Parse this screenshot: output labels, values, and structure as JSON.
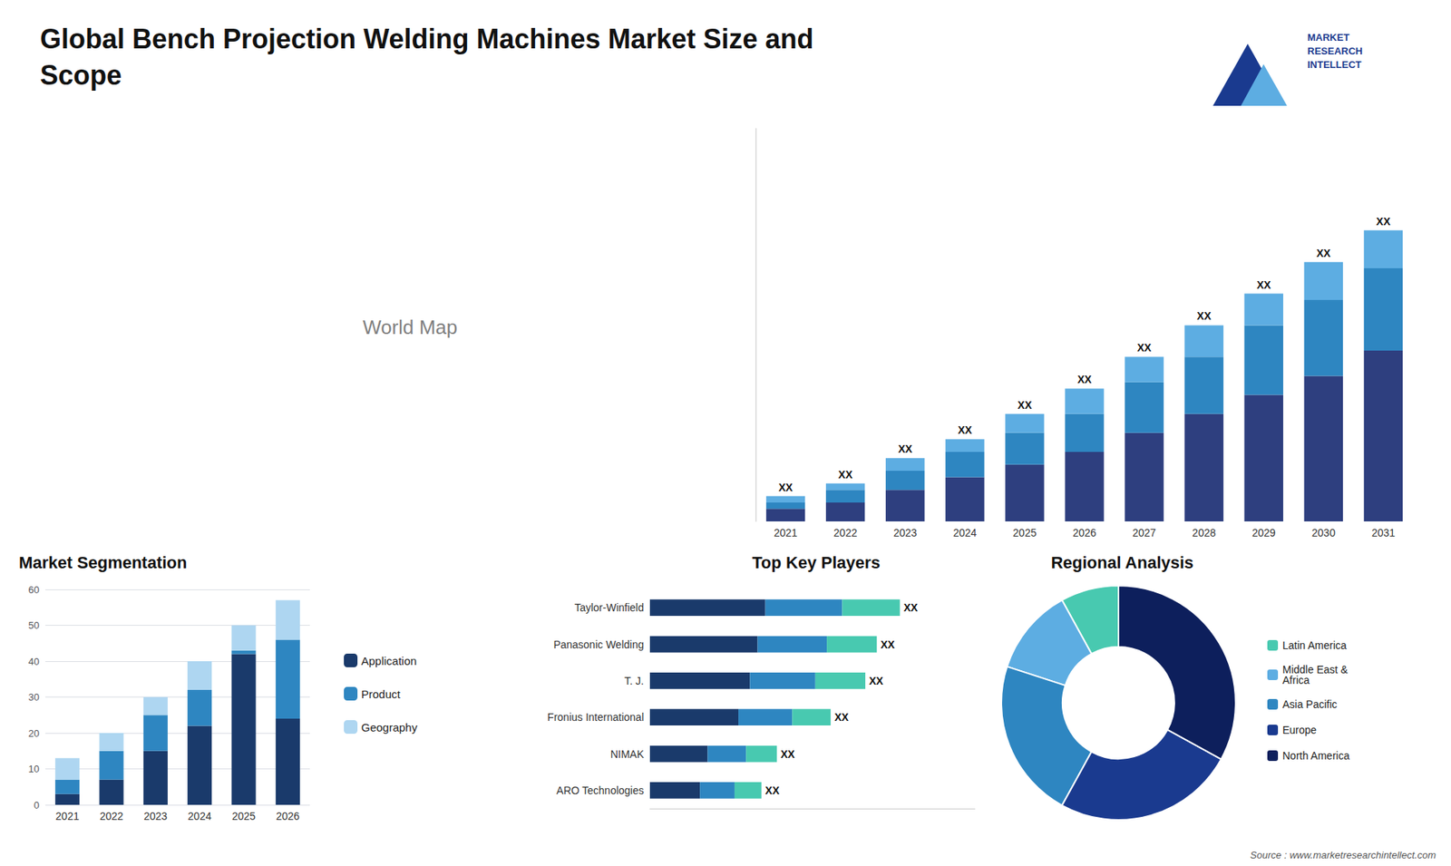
{
  "title": "Global Bench Projection Welding Machines Market Size and\nScope",
  "annotations": [
    {
      "text": "World Map"
    },
    {
      "text": "MARKET\nRESEARCH\nINTELLECT"
    },
    {
      "text": "Source : www.marketresearchintellect.com"
    }
  ],
  "chart_data": [
    {
      "type": "bar",
      "stacked": true,
      "categories": [
        "2021",
        "2022",
        "2023",
        "2024",
        "2025",
        "2026",
        "2027",
        "2028",
        "2029",
        "2030",
        "2031"
      ],
      "series": [
        {
          "color": "#2e3f7f",
          "values": [
            2,
            3,
            5,
            7,
            9,
            11,
            14,
            17,
            20,
            23,
            27
          ]
        },
        {
          "color": "#2e86c1",
          "values": [
            1,
            2,
            3,
            4,
            5,
            6,
            8,
            9,
            11,
            12,
            13
          ]
        },
        {
          "color": "#5dade2",
          "values": [
            1,
            1,
            2,
            2,
            3,
            4,
            4,
            5,
            5,
            6,
            6
          ]
        }
      ],
      "ylim": [
        0,
        62.1
      ],
      "tick_labels": "x",
      "grid": false,
      "annotations": [
        {
          "x": "2021",
          "text": "XX"
        },
        {
          "x": "2022",
          "text": "XX"
        },
        {
          "x": "2023",
          "text": "XX"
        },
        {
          "x": "2024",
          "text": "XX"
        },
        {
          "x": "2025",
          "text": "XX"
        },
        {
          "x": "2026",
          "text": "XX"
        },
        {
          "x": "2027",
          "text": "XX"
        },
        {
          "x": "2028",
          "text": "XX"
        },
        {
          "x": "2029",
          "text": "XX"
        },
        {
          "x": "2030",
          "text": "XX"
        },
        {
          "x": "2031",
          "text": "XX"
        }
      ]
    },
    {
      "type": "bar",
      "title": "Market Segmentation",
      "stacked": true,
      "categories": [
        "2021",
        "2022",
        "2023",
        "2024",
        "2025",
        "2026"
      ],
      "series": [
        {
          "name": "Application",
          "color": "#1a3a6b",
          "values": [
            3,
            7,
            15,
            22,
            42,
            24
          ]
        },
        {
          "name": "Product",
          "color": "#2e86c1",
          "values": [
            4,
            8,
            10,
            10,
            1,
            22
          ]
        },
        {
          "name": "Geography",
          "color": "#aed6f1",
          "values": [
            6,
            5,
            5,
            8,
            7,
            11
          ]
        }
      ],
      "ylim": [
        0,
        60
      ],
      "yticks": [
        0,
        10,
        20,
        30,
        40,
        50,
        60
      ],
      "grid": true,
      "legend": "right"
    },
    {
      "type": "bar",
      "title": "Top Key Players",
      "orientation": "horizontal",
      "stacked": true,
      "categories": [
        "Taylor-Winfield",
        "Panasonic Welding",
        "T. J.",
        "Fronius International",
        "NIMAK",
        "ARO Technologies"
      ],
      "series": [
        {
          "color": "#1a3a6b",
          "values": [
            30,
            28,
            26,
            23,
            15,
            13
          ]
        },
        {
          "color": "#2e86c1",
          "values": [
            20,
            18,
            17,
            14,
            10,
            9
          ]
        },
        {
          "color": "#48c9b0",
          "values": [
            15,
            13,
            13,
            10,
            8,
            7
          ]
        }
      ],
      "xlim": [
        0,
        84.5
      ],
      "tick_labels": "y",
      "grid": false,
      "annotations": [
        {
          "y": "Taylor-Winfield",
          "text": "XX"
        },
        {
          "y": "Panasonic Welding",
          "text": "XX"
        },
        {
          "y": "T. J.",
          "text": "XX"
        },
        {
          "y": "Fronius International",
          "text": "XX"
        },
        {
          "y": "NIMAK",
          "text": "XX"
        },
        {
          "y": "ARO Technologies",
          "text": "XX"
        }
      ]
    },
    {
      "type": "pie",
      "title": "Regional Analysis",
      "categories": [
        "Latin America",
        "Middle East &\nAfrica",
        "Asia Pacific",
        "Europe",
        "North America"
      ],
      "values": [
        8,
        12,
        22,
        25,
        33
      ],
      "colors": [
        "#48c9b0",
        "#5dade2",
        "#2e86c1",
        "#1a3a8f",
        "#0d1f5c"
      ],
      "legend": "right"
    }
  ]
}
